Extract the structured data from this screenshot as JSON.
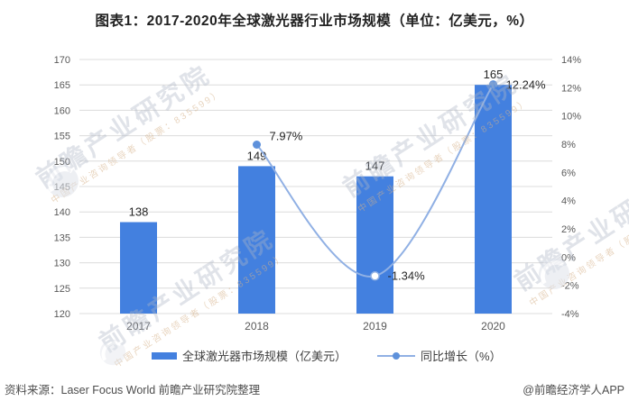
{
  "title": "图表1：2017-2020年全球激光器行业市场规模（单位：亿美元，%）",
  "chart_data": {
    "type": "bar",
    "subtype": "combo-bar-line",
    "categories": [
      "2017",
      "2018",
      "2019",
      "2020"
    ],
    "series": [
      {
        "name": "全球激光器市场规模（亿美元）",
        "type": "bar",
        "axis": "left",
        "values": [
          138,
          149,
          147,
          165
        ],
        "color": "#4380DF"
      },
      {
        "name": "同比增长（%）",
        "type": "line",
        "axis": "right",
        "values": [
          null,
          7.97,
          -1.34,
          12.24
        ],
        "color": "#90B0E4",
        "marker_color": "#5E91DB",
        "marker_styles": [
          null,
          "filled",
          "hollow",
          "filled"
        ]
      }
    ],
    "left_axis": {
      "min": 120,
      "max": 170,
      "step": 5
    },
    "right_axis": {
      "min": -4,
      "max": 14,
      "step": 2,
      "suffix": "%"
    },
    "grid": true,
    "legend_position": "bottom",
    "title": "图表1：2017-2020年全球激光器行业市场规模（单位：亿美元，%）"
  },
  "legend": {
    "bar_label": "全球激光器市场规模（亿美元）",
    "line_label": "同比增长（%）"
  },
  "footer": {
    "source": "资料来源：Laser Focus World 前瞻产业研究院整理",
    "attribution": "@前瞻经济学人APP"
  },
  "watermark": {
    "text": "前瞻产业研究院",
    "subtext": "中国产业咨询领导者（股票：835599）"
  },
  "colors": {
    "bar": "#4380DF",
    "line": "#90B0E4",
    "marker": "#5E91DB",
    "grid": "#DCDCDC",
    "axis_text": "#595959",
    "label_text": "#262626"
  }
}
